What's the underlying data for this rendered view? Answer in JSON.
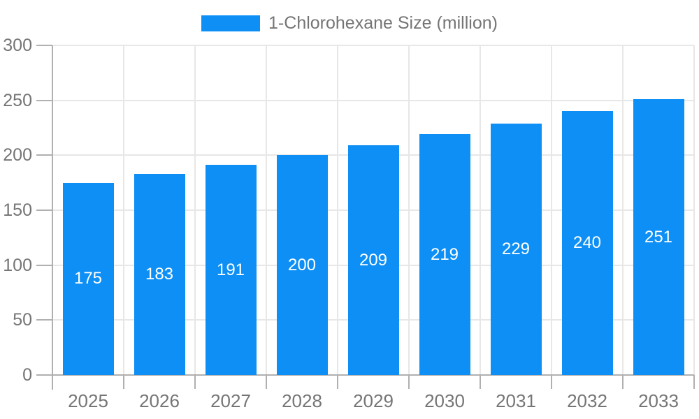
{
  "chart_data": {
    "type": "bar",
    "title": "1-Chlorohexane Size (million)",
    "legend": [
      "1-Chlorohexane Size (million)"
    ],
    "legend_position": "top-center",
    "categories": [
      "2025",
      "2026",
      "2027",
      "2028",
      "2029",
      "2030",
      "2031",
      "2032",
      "2033"
    ],
    "series": [
      {
        "name": "1-Chlorohexane Size (million)",
        "values": [
          175,
          183,
          191,
          200,
          209,
          219,
          229,
          240,
          251
        ]
      }
    ],
    "xlabel": "",
    "ylabel": "",
    "ylim": [
      0,
      300
    ],
    "ytick_step": 50,
    "yticks": [
      0,
      50,
      100,
      150,
      200,
      250,
      300
    ],
    "grid": true,
    "value_labels": "inside-center",
    "colors": {
      "bar": "#0d8ff5",
      "value_label": "#ffffff",
      "axis_text": "#757575",
      "axis_line": "#b0b0b0",
      "gridline": "#e7e7e7",
      "background": "#ffffff"
    }
  }
}
